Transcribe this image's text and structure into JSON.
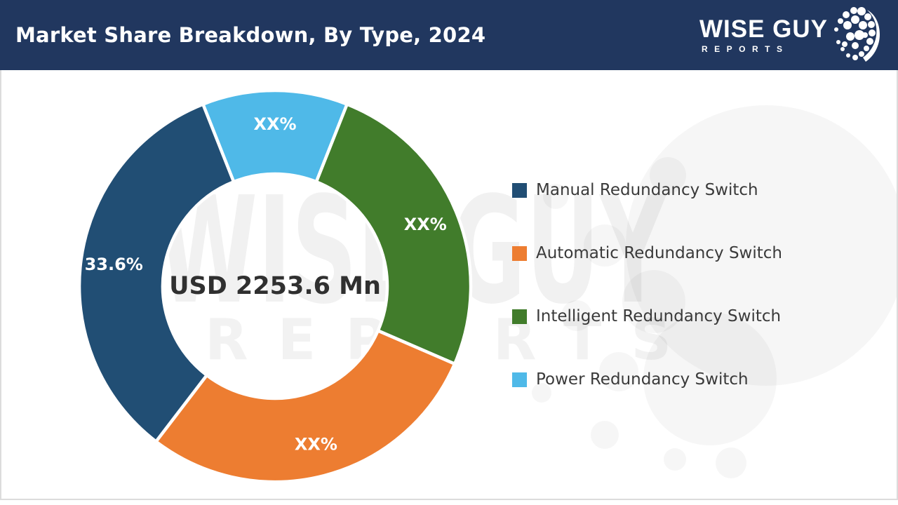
{
  "header": {
    "title": "Market Share Breakdown, By Type, 2024",
    "bg_color": "#21375f",
    "logo": {
      "line1": "WISE GUY",
      "line2": "REPORTS"
    }
  },
  "watermark": {
    "line1": "WISE GUY",
    "line2": "REPORTS"
  },
  "chart_data": {
    "type": "pie",
    "subtype": "donut",
    "title": "Market Share Breakdown, By Type, 2024",
    "center_label": "USD 2253.6 Mn",
    "legend_position": "right",
    "series": [
      {
        "name": "Manual Redundancy Switch",
        "color": "#214e74",
        "label": "33.6%",
        "value": 33.6
      },
      {
        "name": "Automatic Redundancy Switch",
        "color": "#ed7d31",
        "label": "XX%",
        "value": 28.9
      },
      {
        "name": "Intelligent Redundancy Switch",
        "color": "#417c2b",
        "label": "XX%",
        "value": 25.5
      },
      {
        "name": "Power Redundancy Switch",
        "color": "#4fb9e8",
        "label": "XX%",
        "value": 12.0
      }
    ],
    "draw_order": [
      3,
      2,
      1,
      0
    ],
    "start_rule": "top-slice-centered-at-12-oclock",
    "note": "Only the Manual slice shows its percent (33.6%); other slices are masked as XX% in the image, numeric values estimated from arc angles."
  }
}
